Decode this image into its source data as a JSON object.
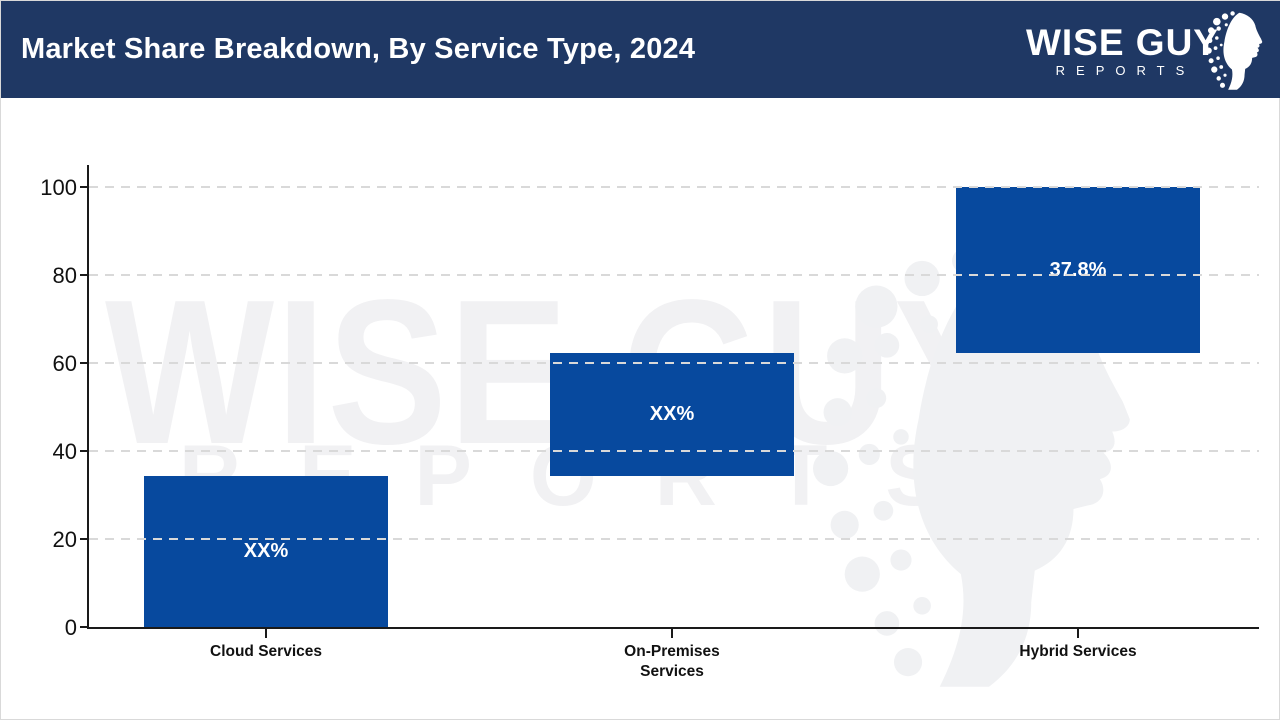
{
  "header": {
    "title": "Market Share Breakdown, By Service Type, 2024",
    "logo": {
      "line1": "WISE GUY",
      "line2": "REPORTS"
    }
  },
  "watermark": {
    "line1": "WISE GUY",
    "line2": "REPORTS"
  },
  "chart_data": {
    "type": "bar",
    "subtype": "waterfall-floating-bars",
    "title": "Market Share Breakdown, By Service Type, 2024",
    "categories": [
      "Cloud Services",
      "On-Premises\nServices",
      "Hybrid Services"
    ],
    "series": [
      {
        "name": "Market share by service type",
        "segments": [
          {
            "category": "Cloud Services",
            "start": 0,
            "end": 34.3,
            "value_label": "XX%"
          },
          {
            "category": "On-Premises Services",
            "start": 34.3,
            "end": 62.2,
            "value_label": "XX%"
          },
          {
            "category": "Hybrid Services",
            "start": 62.2,
            "end": 100,
            "value_label": "37.8%"
          }
        ]
      }
    ],
    "yticks": [
      0,
      20,
      40,
      60,
      80,
      100
    ],
    "ylim": [
      0,
      105
    ],
    "xlabel": "",
    "ylabel": "",
    "grid": "horizontal-dashed-over-bars",
    "legend": "none"
  },
  "colors": {
    "header_bg": "#1f3864",
    "bar": "#07499e",
    "bar_label": "#ffffff",
    "grid": "#d9d9d9",
    "axis": "#1a1a1a",
    "tick_text": "#111111",
    "watermark": "#f1f1f3"
  }
}
